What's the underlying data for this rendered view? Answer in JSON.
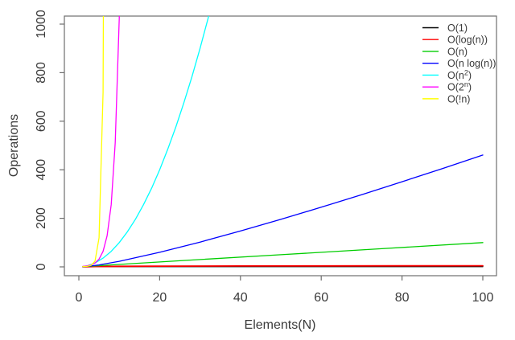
{
  "window": {
    "background": "#ffffff"
  },
  "palette": {
    "axis_line": "#6e6e6e",
    "text": "#3a3a3a"
  },
  "chart_data": {
    "type": "line",
    "title": "",
    "xlabel": "Elements(N)",
    "ylabel": "Operations",
    "xlim": [
      0,
      100
    ],
    "ylim": [
      0,
      1000
    ],
    "x_ticks": [
      0,
      20,
      40,
      60,
      80,
      100
    ],
    "y_ticks": [
      0,
      200,
      400,
      600,
      800,
      1000
    ],
    "grid": false,
    "legend_position": "topright",
    "series": [
      {
        "name": "O(1)",
        "label_pre": "O(1)",
        "label_sup": "",
        "label_post": "",
        "color": "#000000",
        "width": 1.4,
        "points": [
          [
            1,
            1
          ],
          [
            25,
            1
          ],
          [
            50,
            1
          ],
          [
            75,
            1
          ],
          [
            100,
            1
          ]
        ]
      },
      {
        "name": "O(log(n))",
        "label_pre": "O(log(n))",
        "label_sup": "",
        "label_post": "",
        "color": "#ff0000",
        "width": 1.8,
        "points": [
          [
            1,
            0
          ],
          [
            2,
            0.69
          ],
          [
            3,
            1.1
          ],
          [
            5,
            1.61
          ],
          [
            10,
            2.3
          ],
          [
            20,
            3.0
          ],
          [
            40,
            3.69
          ],
          [
            60,
            4.09
          ],
          [
            80,
            4.38
          ],
          [
            100,
            4.61
          ]
        ]
      },
      {
        "name": "O(n)",
        "label_pre": "O(n)",
        "label_sup": "",
        "label_post": "",
        "color": "#00cd00",
        "width": 1.3,
        "points": [
          [
            1,
            1
          ],
          [
            25,
            25
          ],
          [
            50,
            50
          ],
          [
            75,
            75
          ],
          [
            100,
            100
          ]
        ]
      },
      {
        "name": "O(n log(n))",
        "label_pre": "O(n log(n))",
        "label_sup": "",
        "label_post": "",
        "color": "#0000ff",
        "width": 1.3,
        "points": [
          [
            1,
            0
          ],
          [
            5,
            8.05
          ],
          [
            10,
            23.0
          ],
          [
            20,
            59.9
          ],
          [
            30,
            102.1
          ],
          [
            40,
            147.6
          ],
          [
            50,
            195.6
          ],
          [
            60,
            245.7
          ],
          [
            70,
            297.4
          ],
          [
            80,
            350.6
          ],
          [
            90,
            404.9
          ],
          [
            100,
            460.5
          ]
        ]
      },
      {
        "name": "O(n^2)",
        "label_pre": "O(n",
        "label_sup": "2",
        "label_post": ")",
        "color": "#00ffff",
        "width": 1.3,
        "points": [
          [
            1,
            1
          ],
          [
            2,
            4
          ],
          [
            4,
            16
          ],
          [
            6,
            36
          ],
          [
            8,
            64
          ],
          [
            10,
            100
          ],
          [
            12,
            144
          ],
          [
            14,
            196
          ],
          [
            16,
            256
          ],
          [
            18,
            324
          ],
          [
            20,
            400
          ],
          [
            22,
            484
          ],
          [
            24,
            576
          ],
          [
            26,
            676
          ],
          [
            28,
            784
          ],
          [
            30,
            900
          ],
          [
            32,
            1024
          ],
          [
            34,
            1156
          ]
        ]
      },
      {
        "name": "O(2^n)",
        "label_pre": "O(2",
        "label_sup": "n",
        "label_post": ")",
        "color": "#ff00ff",
        "width": 1.3,
        "points": [
          [
            1,
            2
          ],
          [
            2,
            4
          ],
          [
            3,
            8
          ],
          [
            4,
            16
          ],
          [
            5,
            32
          ],
          [
            6,
            64
          ],
          [
            7,
            128
          ],
          [
            8,
            256
          ],
          [
            9,
            512
          ],
          [
            10,
            1024
          ],
          [
            11,
            2048
          ]
        ]
      },
      {
        "name": "O(!n)",
        "label_pre": "O(!n)",
        "label_sup": "",
        "label_post": "",
        "color": "#ffff00",
        "width": 1.3,
        "points": [
          [
            1,
            1
          ],
          [
            2,
            2
          ],
          [
            3,
            6
          ],
          [
            4,
            24
          ],
          [
            5,
            120
          ],
          [
            6,
            720
          ],
          [
            7,
            5040
          ]
        ]
      }
    ]
  }
}
